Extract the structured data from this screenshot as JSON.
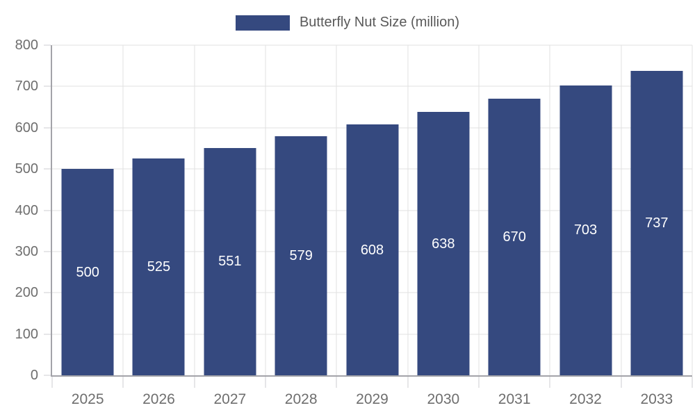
{
  "legend": {
    "label": "Butterfly Nut Size (million)"
  },
  "colors": {
    "bar": "#35497f",
    "axis": "#a3a3a9",
    "grid": "#e1e1e1",
    "tick": "#cdcdd2",
    "axis_text": "#6e6e6e",
    "legend_text": "#595959",
    "bar_label": "#ffffff",
    "background": "#ffffff"
  },
  "chart_data": {
    "type": "bar",
    "title": "",
    "series_name": "Butterfly Nut Size (million)",
    "categories": [
      "2025",
      "2026",
      "2027",
      "2028",
      "2029",
      "2030",
      "2031",
      "2032",
      "2033"
    ],
    "values": [
      500,
      525,
      551,
      579,
      608,
      638,
      670,
      703,
      737
    ],
    "xlabel": "",
    "ylabel": "",
    "ylim": [
      0,
      800
    ],
    "yticks": [
      0,
      100,
      200,
      300,
      400,
      500,
      600,
      700,
      800
    ],
    "grid": true,
    "legend_position": "top",
    "value_labels": "inside-center"
  }
}
